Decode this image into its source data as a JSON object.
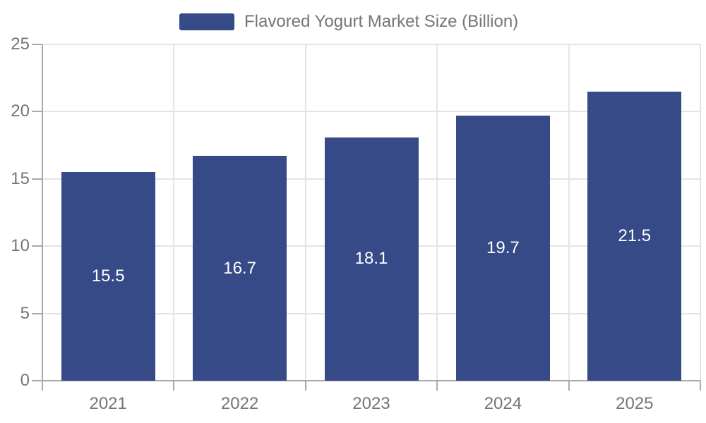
{
  "chart_data": {
    "type": "bar",
    "title": "Flavored Yogurt Market Size (Billion)",
    "series_name": "Flavored Yogurt Market Size (Billion)",
    "categories": [
      "2021",
      "2022",
      "2023",
      "2024",
      "2025"
    ],
    "values": [
      15.5,
      16.7,
      18.1,
      19.7,
      21.5
    ],
    "bar_value_labels": [
      "15.5",
      "16.7",
      "18.1",
      "19.7",
      "21.5"
    ],
    "xlabel": "",
    "ylabel": "",
    "ylim": [
      0,
      25
    ],
    "yticks": [
      0,
      5,
      10,
      15,
      20,
      25
    ],
    "grid": true,
    "legend_position": "top",
    "value_label_position": "inside-center",
    "colors": {
      "bar": "#374a88",
      "bar_label": "#ffffff",
      "axis_line": "#a9a9a9",
      "grid_line": "#e4e4e4",
      "tick_text": "#757575",
      "legend_text": "#757575",
      "background": "#ffffff"
    }
  }
}
